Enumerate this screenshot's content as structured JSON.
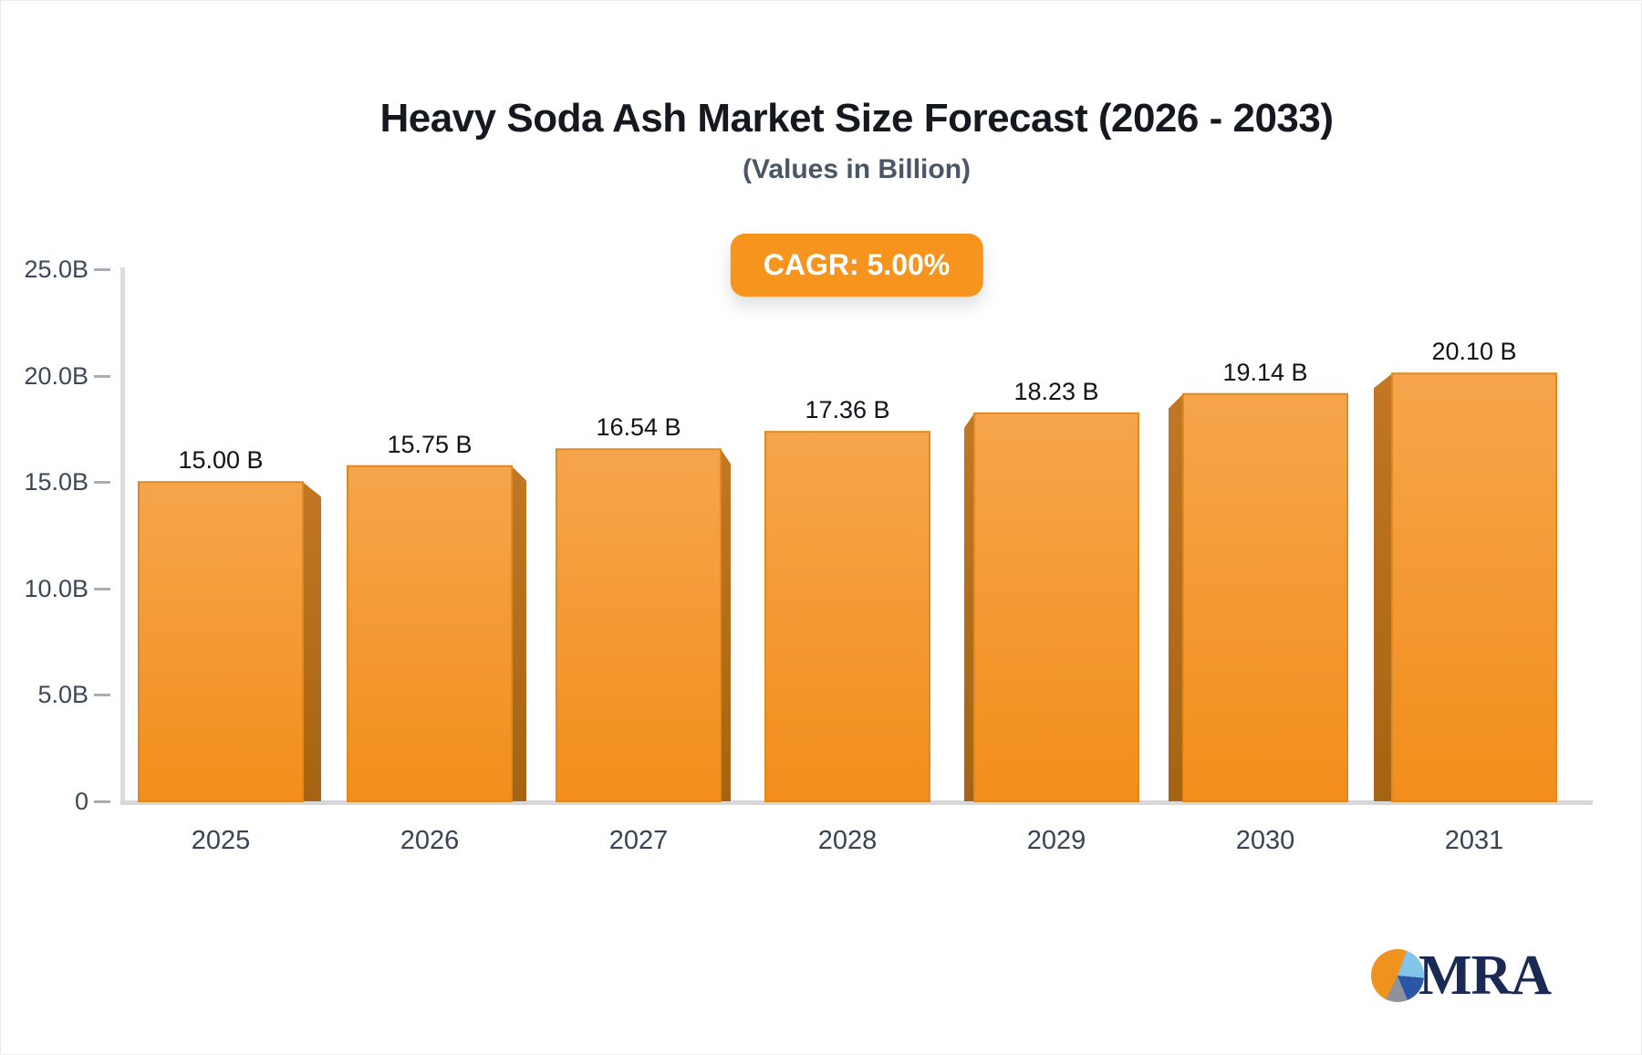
{
  "chart_data": {
    "type": "bar",
    "title": "Heavy Soda Ash Market Size Forecast (2026 - 2033)",
    "subtitle": "(Values in Billion)",
    "cagr_badge": "CAGR: 5.00%",
    "categories": [
      "2025",
      "2026",
      "2027",
      "2028",
      "2029",
      "2030",
      "2031"
    ],
    "values": [
      15.0,
      15.75,
      16.54,
      17.36,
      18.23,
      19.14,
      20.1
    ],
    "value_labels": [
      "15.00 B",
      "15.75 B",
      "16.54 B",
      "17.36 B",
      "18.23 B",
      "19.14 B",
      "20.10 B"
    ],
    "y_ticks_top_down": [
      "25.0B",
      "20.0B",
      "15.0B",
      "10.0B",
      "5.0B",
      "0"
    ],
    "ylim": [
      0,
      25
    ],
    "grid": false,
    "legend": "none",
    "xlabel": "",
    "ylabel": ""
  },
  "colors": {
    "bar_face_top": "#F6A54C",
    "bar_face_bottom": "#F28E1B",
    "bar_side_top": "#C27723",
    "bar_side_bottom": "#A56413",
    "bar_edge": "#E0891E",
    "badge_bg": "#F7941E",
    "axis_line": "#D9DBDE",
    "tick_mark": "#A9AEB5",
    "axis_text": "#3D4856",
    "value_text": "#0F1318",
    "title_text": "#15181F",
    "subtitle_text": "#4A5565"
  },
  "logo": {
    "text": "MRA",
    "icon": "pie-chart-icon",
    "text_color": "#1B2A55",
    "pie_colors": [
      "#F0921E",
      "#82C5EB",
      "#2A57A5",
      "#8D929C"
    ]
  }
}
